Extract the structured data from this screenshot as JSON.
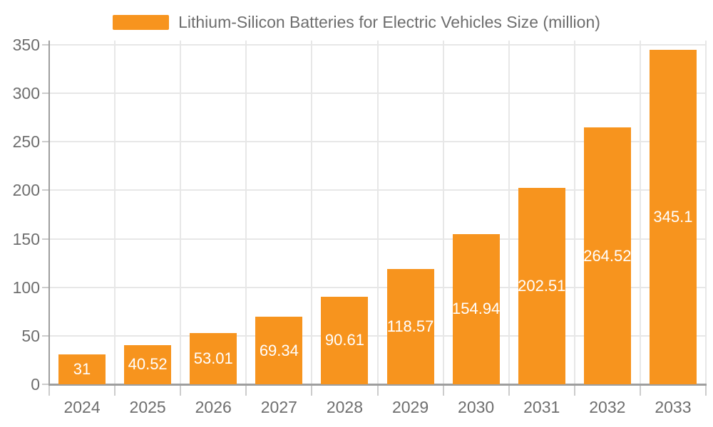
{
  "chart_data": {
    "type": "bar",
    "title": "Lithium-Silicon Batteries for Electric Vehicles Size (million)",
    "categories": [
      "2024",
      "2025",
      "2026",
      "2027",
      "2028",
      "2029",
      "2030",
      "2031",
      "2032",
      "2033"
    ],
    "values": [
      31,
      40.52,
      53.01,
      69.34,
      90.61,
      118.57,
      154.94,
      202.51,
      264.52,
      345.1
    ],
    "value_label_texts": [
      "31",
      "40.52",
      "53.01",
      "69.34",
      "90.61",
      "118.57",
      "154.94",
      "202.51",
      "264.52",
      "345.1"
    ],
    "xlabel": "",
    "ylabel": "",
    "ylim": [
      0,
      350
    ],
    "yticks": [
      0,
      50,
      100,
      150,
      200,
      250,
      300,
      350
    ],
    "grid": true,
    "legend_position": "top",
    "value_label_position": "inside-center",
    "colors": {
      "bar": "#f7941e",
      "grid_line": "#e7e7e7",
      "axis_line": "#9e9e9e",
      "tick_line": "#cccccc",
      "axis_label_text": "#6e6e6e",
      "title_text": "#6d6d6d",
      "value_label_text": "#ffffff"
    }
  }
}
